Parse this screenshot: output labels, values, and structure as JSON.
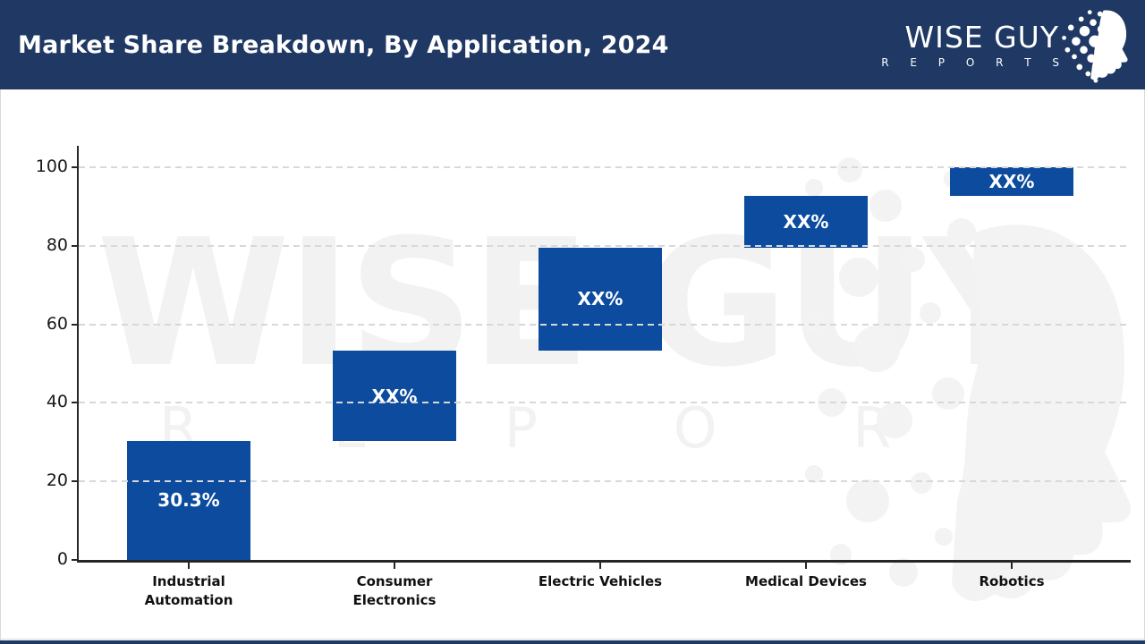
{
  "header": {
    "title": "Market Share Breakdown, By Application, 2024",
    "logo": {
      "brand": "WISE GUY",
      "sub": "R E P O R T S"
    }
  },
  "watermark": {
    "line1": "WISE GUY",
    "line2": "R E P O R T S"
  },
  "colors": {
    "header_bg": "#1f3864",
    "bar_blue": "#0c4b9e",
    "gridline": "#d8d8d8",
    "axis": "#262626",
    "watermark_gray": "#f2f2f2",
    "bar_label_text": "#ffffff"
  },
  "chart_data": {
    "type": "bar",
    "subtype": "waterfall-stepped-segments",
    "title": "Market Share Breakdown, By Application, 2024",
    "categories": [
      "Industrial\nAutomation",
      "Consumer\nElectronics",
      "Electric Vehicles",
      "Medical Devices",
      "Robotics"
    ],
    "segments": [
      {
        "category": "Industrial Automation",
        "start": 0,
        "end": 30.3,
        "label": "30.3%"
      },
      {
        "category": "Consumer Electronics",
        "start": 30.3,
        "end": 53.2,
        "label": "XX%"
      },
      {
        "category": "Electric Vehicles",
        "start": 53.2,
        "end": 79.6,
        "label": "XX%"
      },
      {
        "category": "Medical Devices",
        "start": 79.6,
        "end": 92.8,
        "label": "XX%"
      },
      {
        "category": "Robotics",
        "start": 92.8,
        "end": 100,
        "label": "XX%"
      }
    ],
    "xlabel": "",
    "ylabel": "",
    "ylim": [
      0,
      100
    ],
    "yticks": [
      0,
      20,
      40,
      60,
      80,
      100
    ],
    "grid": "horizontal-dashed-over-bars",
    "legend": null
  }
}
